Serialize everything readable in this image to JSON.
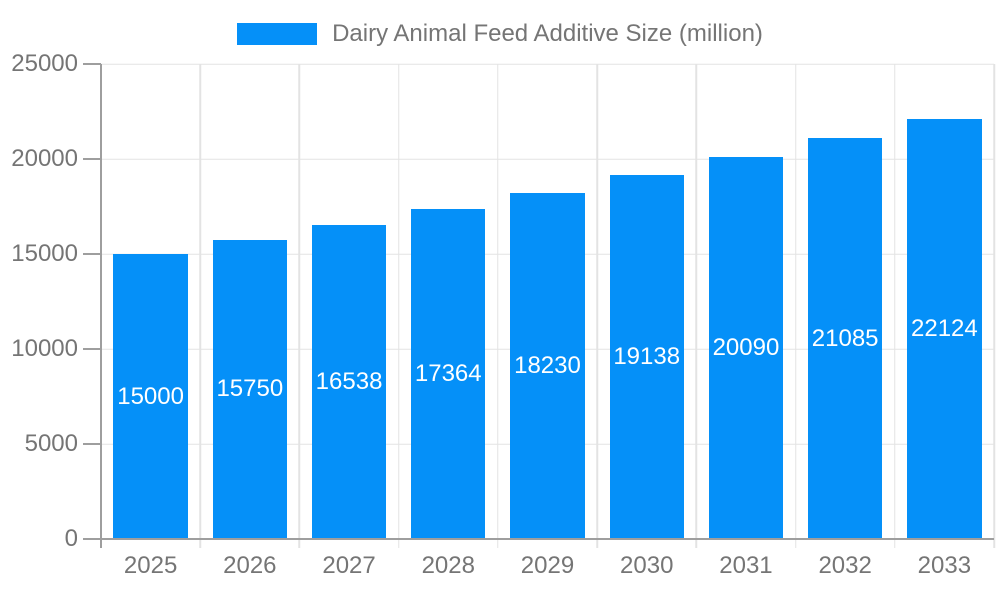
{
  "legend": {
    "position": "top-center"
  },
  "chart_data": {
    "type": "bar",
    "title": "Dairy Animal Feed Additive Size (million)",
    "categories": [
      "2025",
      "2026",
      "2027",
      "2028",
      "2029",
      "2030",
      "2031",
      "2032",
      "2033"
    ],
    "series": [
      {
        "name": "Dairy Animal Feed Additive Size (million)",
        "values": [
          15000,
          15750,
          16538,
          17364,
          18230,
          19138,
          20090,
          21085,
          22124
        ]
      }
    ],
    "xlabel": "",
    "ylabel": "",
    "ylim": [
      0,
      25000
    ],
    "yticks": [
      0,
      5000,
      10000,
      15000,
      20000,
      25000
    ],
    "grid": true,
    "legend_position": "top",
    "value_labels_position": "inside-center"
  },
  "colors": {
    "bar": "#0590f8",
    "axis_text": "#757575",
    "grid_line": "#e3e3e3",
    "axis_line": "#9e9e9e",
    "value_label": "#ffffff",
    "background": "#ffffff"
  }
}
